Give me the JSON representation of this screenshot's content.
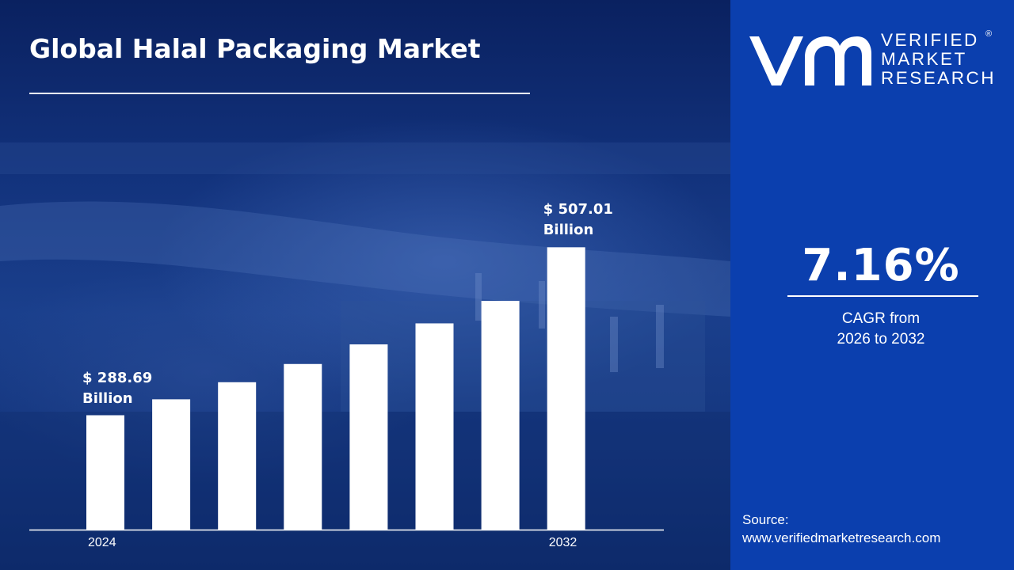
{
  "header": {
    "title": "Global Halal Packaging Market"
  },
  "brand": {
    "line1": "VERIFIED",
    "line2": "MARKET",
    "line3": "RESEARCH",
    "registered": "®"
  },
  "cagr": {
    "value": "7.16%",
    "label_line1": "CAGR from",
    "label_line2": "2026 to 2032"
  },
  "source": {
    "label": "Source:",
    "url": "www.verifiedmarketresearch.com"
  },
  "colors": {
    "right_panel": "#0b3fae",
    "bars": "#ffffff"
  },
  "chart_data": {
    "type": "bar",
    "title": "Global Halal Packaging Market",
    "categories": [
      "2024",
      "",
      "",
      "",
      "",
      "",
      "",
      "2032"
    ],
    "values": [
      288.69,
      309.4,
      331.6,
      355.3,
      380.8,
      408.1,
      437.3,
      507.01
    ],
    "data_labels": [
      {
        "index": 0,
        "line1": "$ 288.69",
        "line2": "Billion"
      },
      {
        "index": 7,
        "line1": "$ 507.01",
        "line2": "Billion"
      }
    ],
    "unit": "Billion",
    "ylim": [
      140,
      530
    ],
    "grid": false,
    "legend": "none"
  }
}
